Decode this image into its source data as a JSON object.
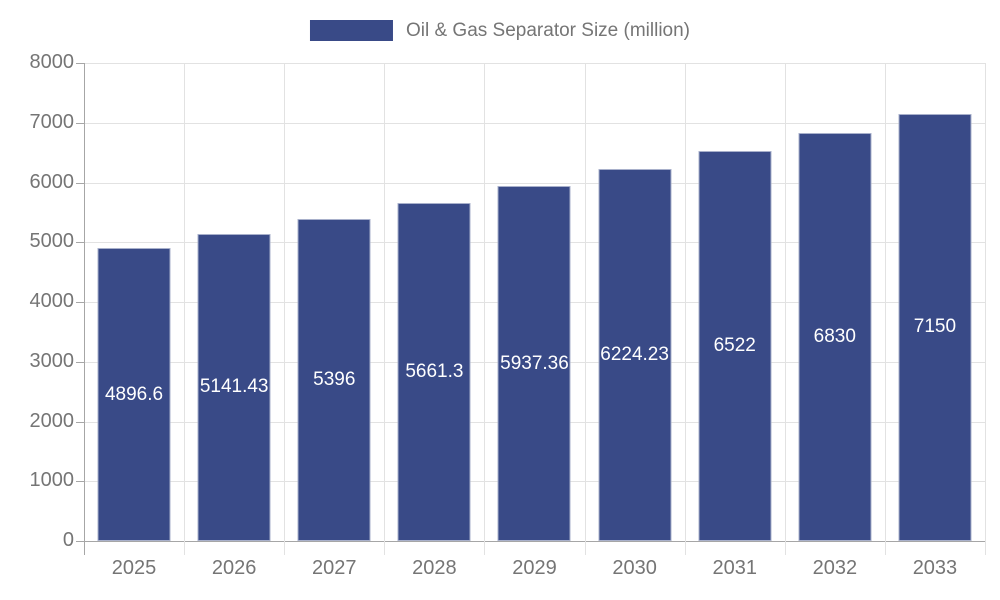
{
  "legend": {
    "label": "Oil & Gas Separator Size (million)"
  },
  "colors": {
    "bar_fill": "#394A87",
    "bar_border": "#A8B0CB",
    "grid_line": "#E2E2E2",
    "axis_line": "#A6A6A6",
    "axis_text": "#757575",
    "bar_label_text": "#FFFFFF"
  },
  "chart_data": {
    "type": "bar",
    "title": "Oil & Gas Separator Size (million)",
    "categories": [
      "2025",
      "2026",
      "2027",
      "2028",
      "2029",
      "2030",
      "2031",
      "2032",
      "2033"
    ],
    "values": [
      4896.6,
      5141.43,
      5396,
      5661.3,
      5937.36,
      6224.23,
      6522,
      6830,
      7150
    ],
    "bar_labels": [
      "4896.6",
      "5141.43",
      "5396",
      "5661.3",
      "5937.36",
      "6224.23",
      "6522",
      "6830",
      "7150"
    ],
    "series_name": "Oil & Gas Separator Size (million)",
    "xlabel": "",
    "ylabel": "",
    "ylim": [
      0,
      8000
    ],
    "yticks": [
      0,
      1000,
      2000,
      3000,
      4000,
      5000,
      6000,
      7000,
      8000
    ],
    "grid": true,
    "legend_position": "top-center",
    "bar_label_position": "inside-center"
  }
}
